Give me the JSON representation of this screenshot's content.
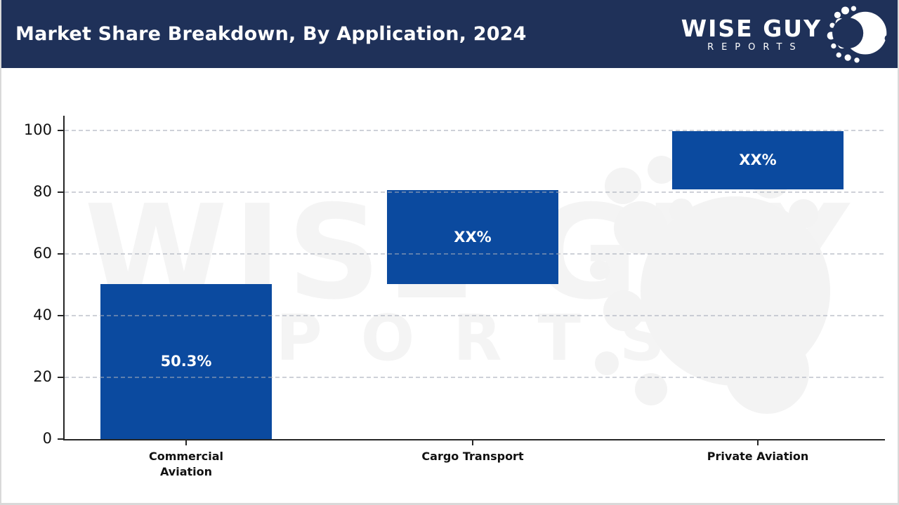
{
  "header": {
    "title": "Market Share Breakdown, By Application, 2024",
    "background_color": "#1f3159",
    "logo": {
      "line1": "WISE GUY",
      "line2": "REPORTS"
    }
  },
  "watermark": {
    "line1": "WISE GUY",
    "line2": "REPORTS"
  },
  "chart_data": {
    "type": "bar",
    "subtype": "waterfall",
    "title": "Market Share Breakdown, By Application, 2024",
    "categories": [
      "Commercial\nAviation",
      "Cargo Transport",
      "Private Aviation"
    ],
    "series": [
      {
        "name": "Market share (%)",
        "segments": [
          {
            "category": "Commercial Aviation",
            "base": 0,
            "top": 50.3,
            "label": "50.3%"
          },
          {
            "category": "Cargo Transport",
            "base": 50.3,
            "top": 80.7,
            "label": "XX%"
          },
          {
            "category": "Private Aviation",
            "base": 81.0,
            "top": 99.8,
            "label": "XX%"
          }
        ]
      }
    ],
    "ylim": [
      0,
      100
    ],
    "yticks": [
      0,
      20,
      40,
      60,
      80,
      100
    ],
    "grid": "horizontal-dashed",
    "legend": "none",
    "bar_color": "#0b4a9f",
    "bar_label_color": "#ffffff",
    "xlabel": "",
    "ylabel": ""
  }
}
